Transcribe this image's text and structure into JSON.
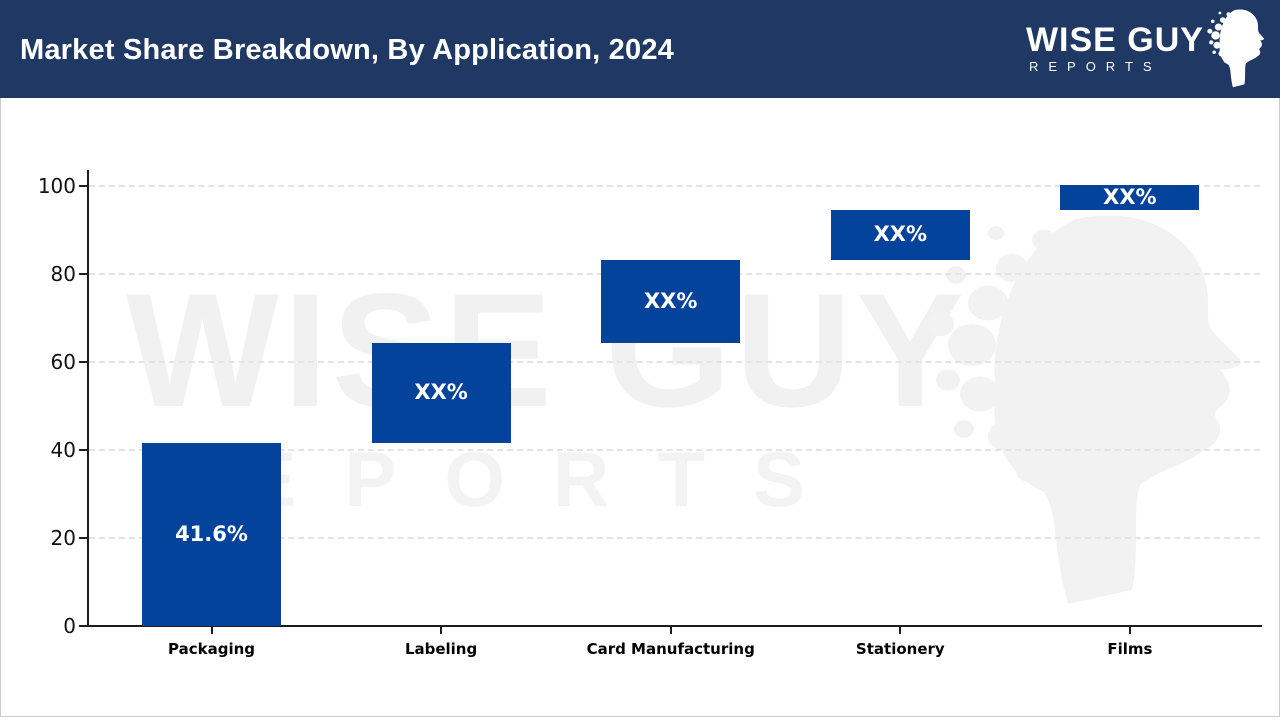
{
  "header": {
    "title": "Market Share Breakdown, By Application, 2024",
    "logo": {
      "line1": "WISE GUY",
      "line2": "REPORTS"
    }
  },
  "watermark": {
    "line1": "WISE GUY",
    "line2": "REPORTS"
  },
  "colors": {
    "header_bg": "#203864",
    "bar": "#04439c",
    "bar_label": "#ffffff",
    "axis": "#1c1c1c",
    "grid": "#e3e3e3",
    "watermark": "#f1f1f1"
  },
  "chart_data": {
    "type": "bar",
    "subtype": "floating-waterfall",
    "title": "Market Share Breakdown, By Application, 2024",
    "categories": [
      "Packaging",
      "Labeling",
      "Card Manufacturing",
      "Stationery",
      "Films"
    ],
    "bars": [
      {
        "category": "Packaging",
        "start": 0,
        "end": 41.6,
        "label": "41.6%"
      },
      {
        "category": "Labeling",
        "start": 41.6,
        "end": 64.4,
        "label": "XX%"
      },
      {
        "category": "Card Manufacturing",
        "start": 64.4,
        "end": 83.2,
        "label": "XX%"
      },
      {
        "category": "Stationery",
        "start": 83.2,
        "end": 94.6,
        "label": "XX%"
      },
      {
        "category": "Films",
        "start": 94.6,
        "end": 100.2,
        "label": "XX%"
      }
    ],
    "xlabel": "",
    "ylabel": "",
    "ylim": [
      0,
      100
    ],
    "yticks": [
      0,
      20,
      40,
      60,
      80,
      100
    ],
    "grid": "horizontal-dashed",
    "legend": "none",
    "bar_color": "#04439c",
    "bar_label_color": "#ffffff"
  }
}
